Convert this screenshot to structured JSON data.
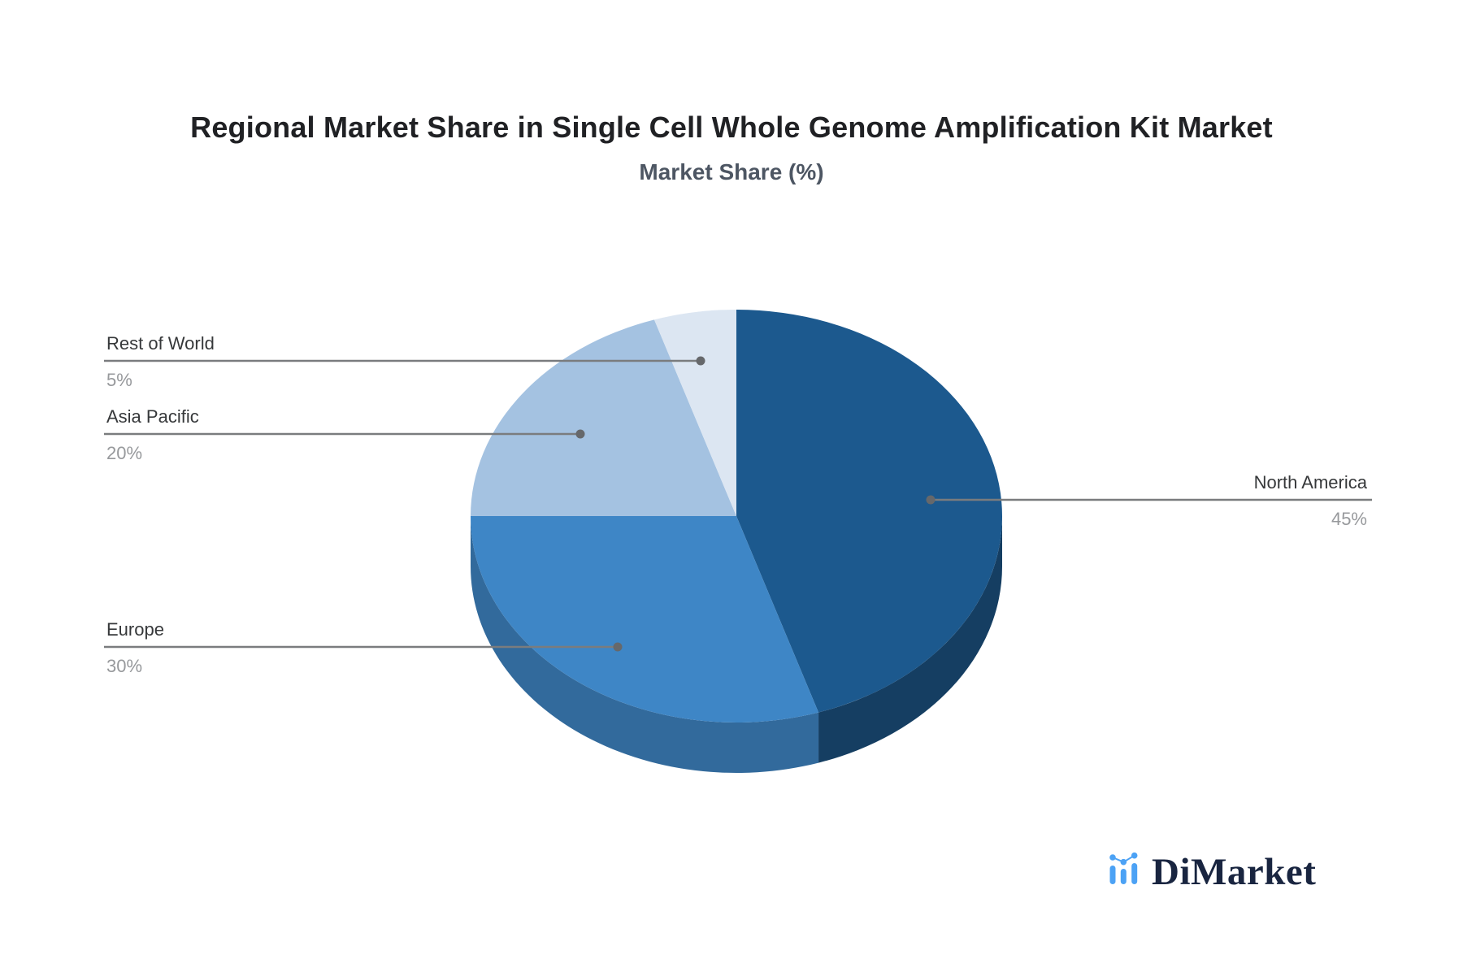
{
  "page": {
    "background": "#ffffff"
  },
  "header": {
    "title": "Regional Market Share in Single Cell Whole Genome Amplification Kit Market",
    "subtitle": "Market Share (%)"
  },
  "chart_data": {
    "type": "pie",
    "style": "3d",
    "title": "Regional Market Share in Single Cell Whole Genome Amplification Kit Market",
    "subtitle": "Market Share (%)",
    "unit": "%",
    "direction": "clockwise",
    "start_angle_deg": 0,
    "categories": [
      "North America",
      "Europe",
      "Asia Pacific",
      "Rest of World"
    ],
    "values": [
      45,
      30,
      20,
      5
    ],
    "value_labels": [
      "45%",
      "30%",
      "20%",
      "5%"
    ],
    "colors": [
      "#1c598e",
      "#3e86c6",
      "#a4c2e1",
      "#dce6f2"
    ],
    "side_colors": [
      "#153e62",
      "#326a9c",
      "#8fb3d9",
      "#c8d6e8"
    ],
    "leader_line_color": "#7a7c7e",
    "leader_dot_color": "#66686b",
    "label_color": "#36383a",
    "value_label_color": "#97999c",
    "legend_position": "none",
    "grid": false
  },
  "branding": {
    "logo_text": "DiMarket",
    "logo_color": "#192540",
    "icon_color": "#4ca2f5"
  }
}
